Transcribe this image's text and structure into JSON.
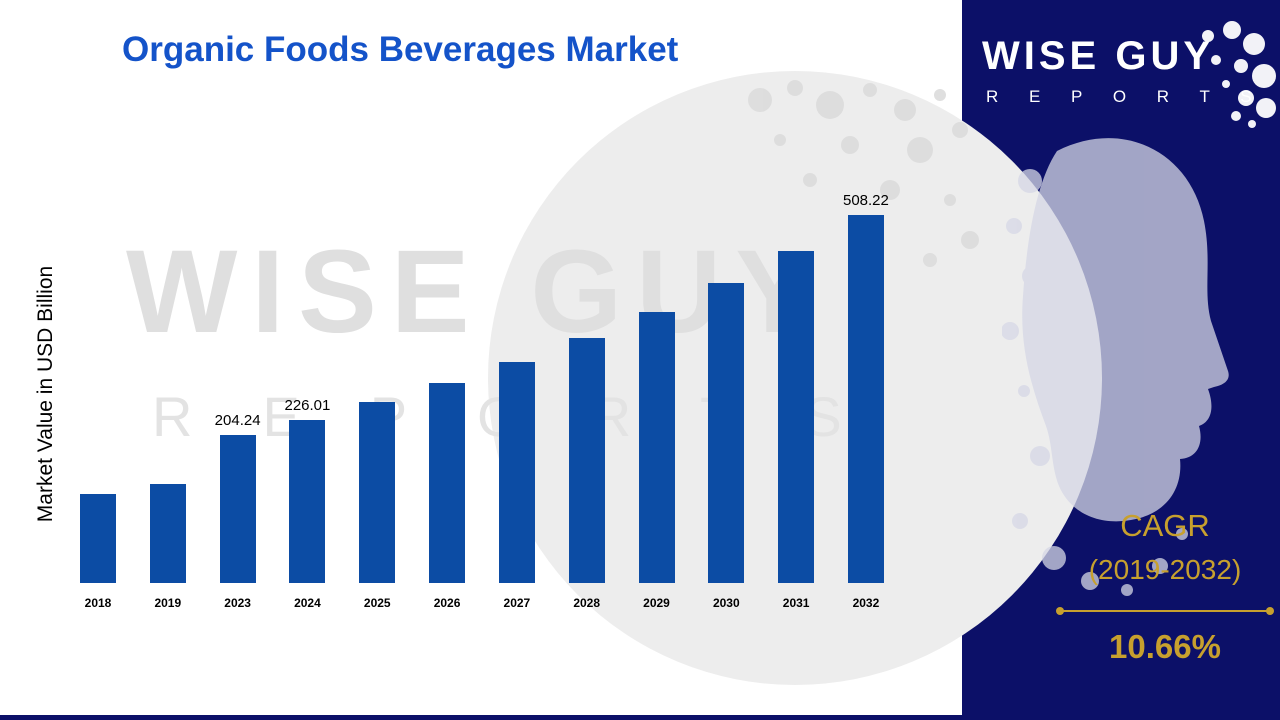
{
  "title": "Organic Foods  Beverages Market",
  "watermark": {
    "line1": "WISE GUY",
    "line2": "REPORTS"
  },
  "logo": {
    "line1": "WISE GUY",
    "line2": "R E P O R T S"
  },
  "cagr": {
    "label": "CAGR",
    "range": "(2019-2032)",
    "value": "10.66%"
  },
  "colors": {
    "title_blue": "#1453c9",
    "bar_blue": "#0c4ca4",
    "panel_navy": "#0c1068",
    "gold": "#c7a02e"
  },
  "chart_data": {
    "type": "bar",
    "title": "Organic Foods  Beverages Market",
    "xlabel": "",
    "ylabel": "Market Value in USD Billion",
    "categories": [
      "2018",
      "2019",
      "2023",
      "2024",
      "2025",
      "2026",
      "2027",
      "2028",
      "2029",
      "2030",
      "2031",
      "2032"
    ],
    "values": [
      123,
      136.2,
      204.24,
      226.01,
      250.1,
      276.7,
      306.2,
      338.9,
      375.0,
      415.1,
      459.2,
      508.22
    ],
    "value_labels": [
      "",
      "",
      "204.24",
      "226.01",
      "",
      "",
      "",
      "",
      "",
      "",
      "",
      "508.22"
    ],
    "ylim": [
      0,
      560
    ],
    "grid": false,
    "legend": null,
    "bar_color": "#0c4ca4"
  }
}
